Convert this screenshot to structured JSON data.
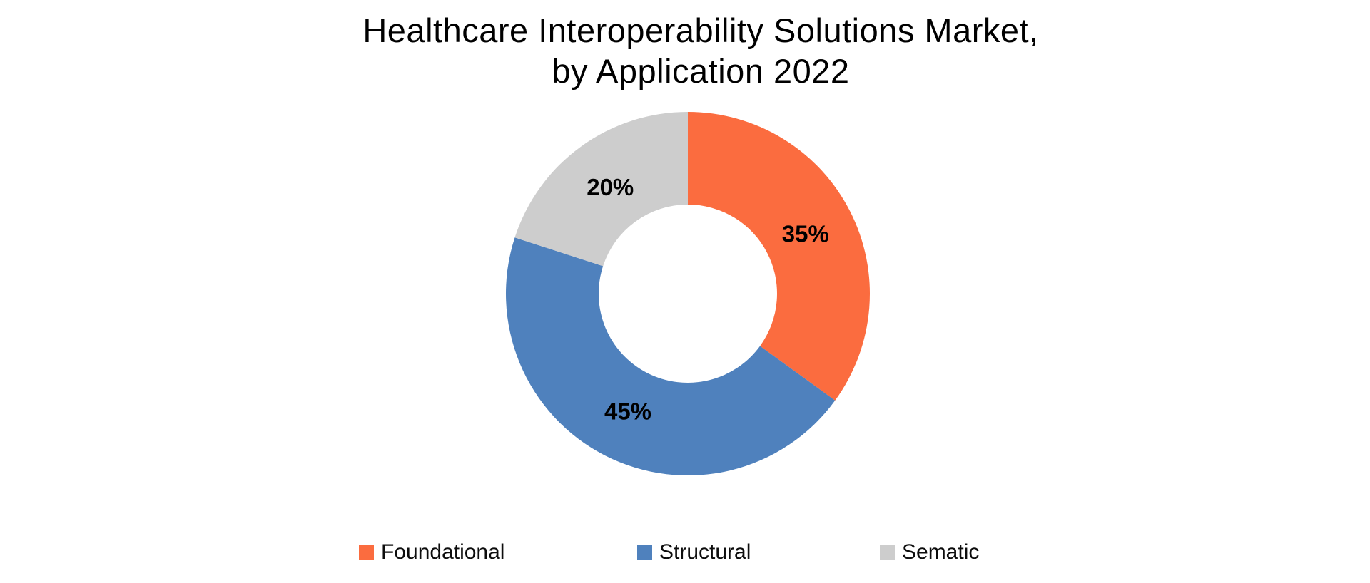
{
  "title": {
    "line1": "Healthcare Interoperability Solutions Market,",
    "line2": "by Application 2022"
  },
  "chart_data": {
    "type": "pie",
    "subtype": "donut",
    "title": "Healthcare Interoperability Solutions Market, by Application 2022",
    "categories": [
      "Foundational",
      "Structural",
      "Sematic"
    ],
    "values": [
      35,
      45,
      20
    ],
    "unit": "%",
    "data_labels": [
      "35%",
      "45%",
      "20%"
    ],
    "colors": [
      "#FB6C3F",
      "#4F81BD",
      "#CDCDCD"
    ],
    "label_color": "#000000",
    "start_angle_deg": 0,
    "direction": "clockwise",
    "inner_radius_ratio": 0.49,
    "legend_position": "bottom",
    "background": "#FFFFFF"
  },
  "legend": {
    "items": [
      {
        "label": "Foundational",
        "color": "#FB6C3F"
      },
      {
        "label": "Structural",
        "color": "#4F81BD"
      },
      {
        "label": "Sematic",
        "color": "#CDCDCD"
      }
    ]
  }
}
